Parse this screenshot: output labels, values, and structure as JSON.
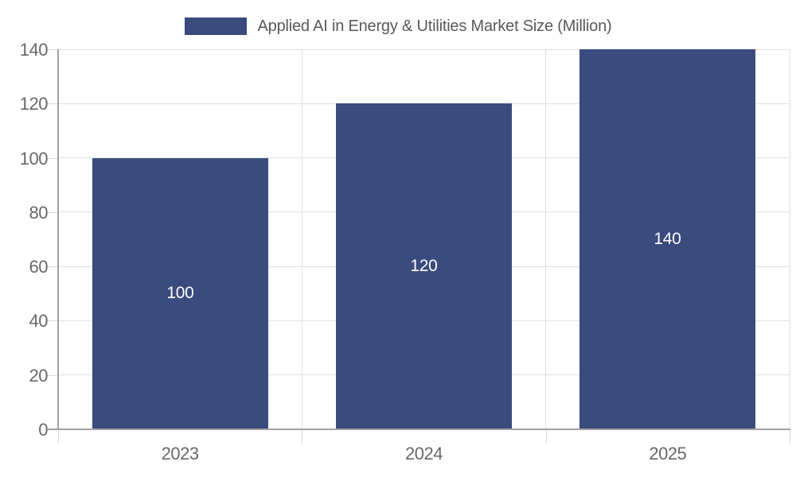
{
  "chart_data": {
    "type": "bar",
    "title": "Applied AI in Energy & Utilities Market Size (Million)",
    "legend_label": "Applied AI in Energy & Utilities Market Size (Million)",
    "legend_position": "top",
    "categories": [
      "2023",
      "2024",
      "2025"
    ],
    "values": [
      100,
      120,
      140
    ],
    "data_labels": [
      "100",
      "120",
      "140"
    ],
    "xlabel": "",
    "ylabel": "",
    "ylim": [
      0,
      140
    ],
    "yticks": [
      0,
      20,
      40,
      60,
      80,
      100,
      120,
      140
    ],
    "grid": "on",
    "colors": {
      "bar": "#3a4b7e",
      "bar_label_text": "#ffffff",
      "tick_text": "#686868",
      "legend_text": "#595959",
      "axis_line": "#a2a2a2",
      "grid_line": "#e0e0e0"
    }
  }
}
